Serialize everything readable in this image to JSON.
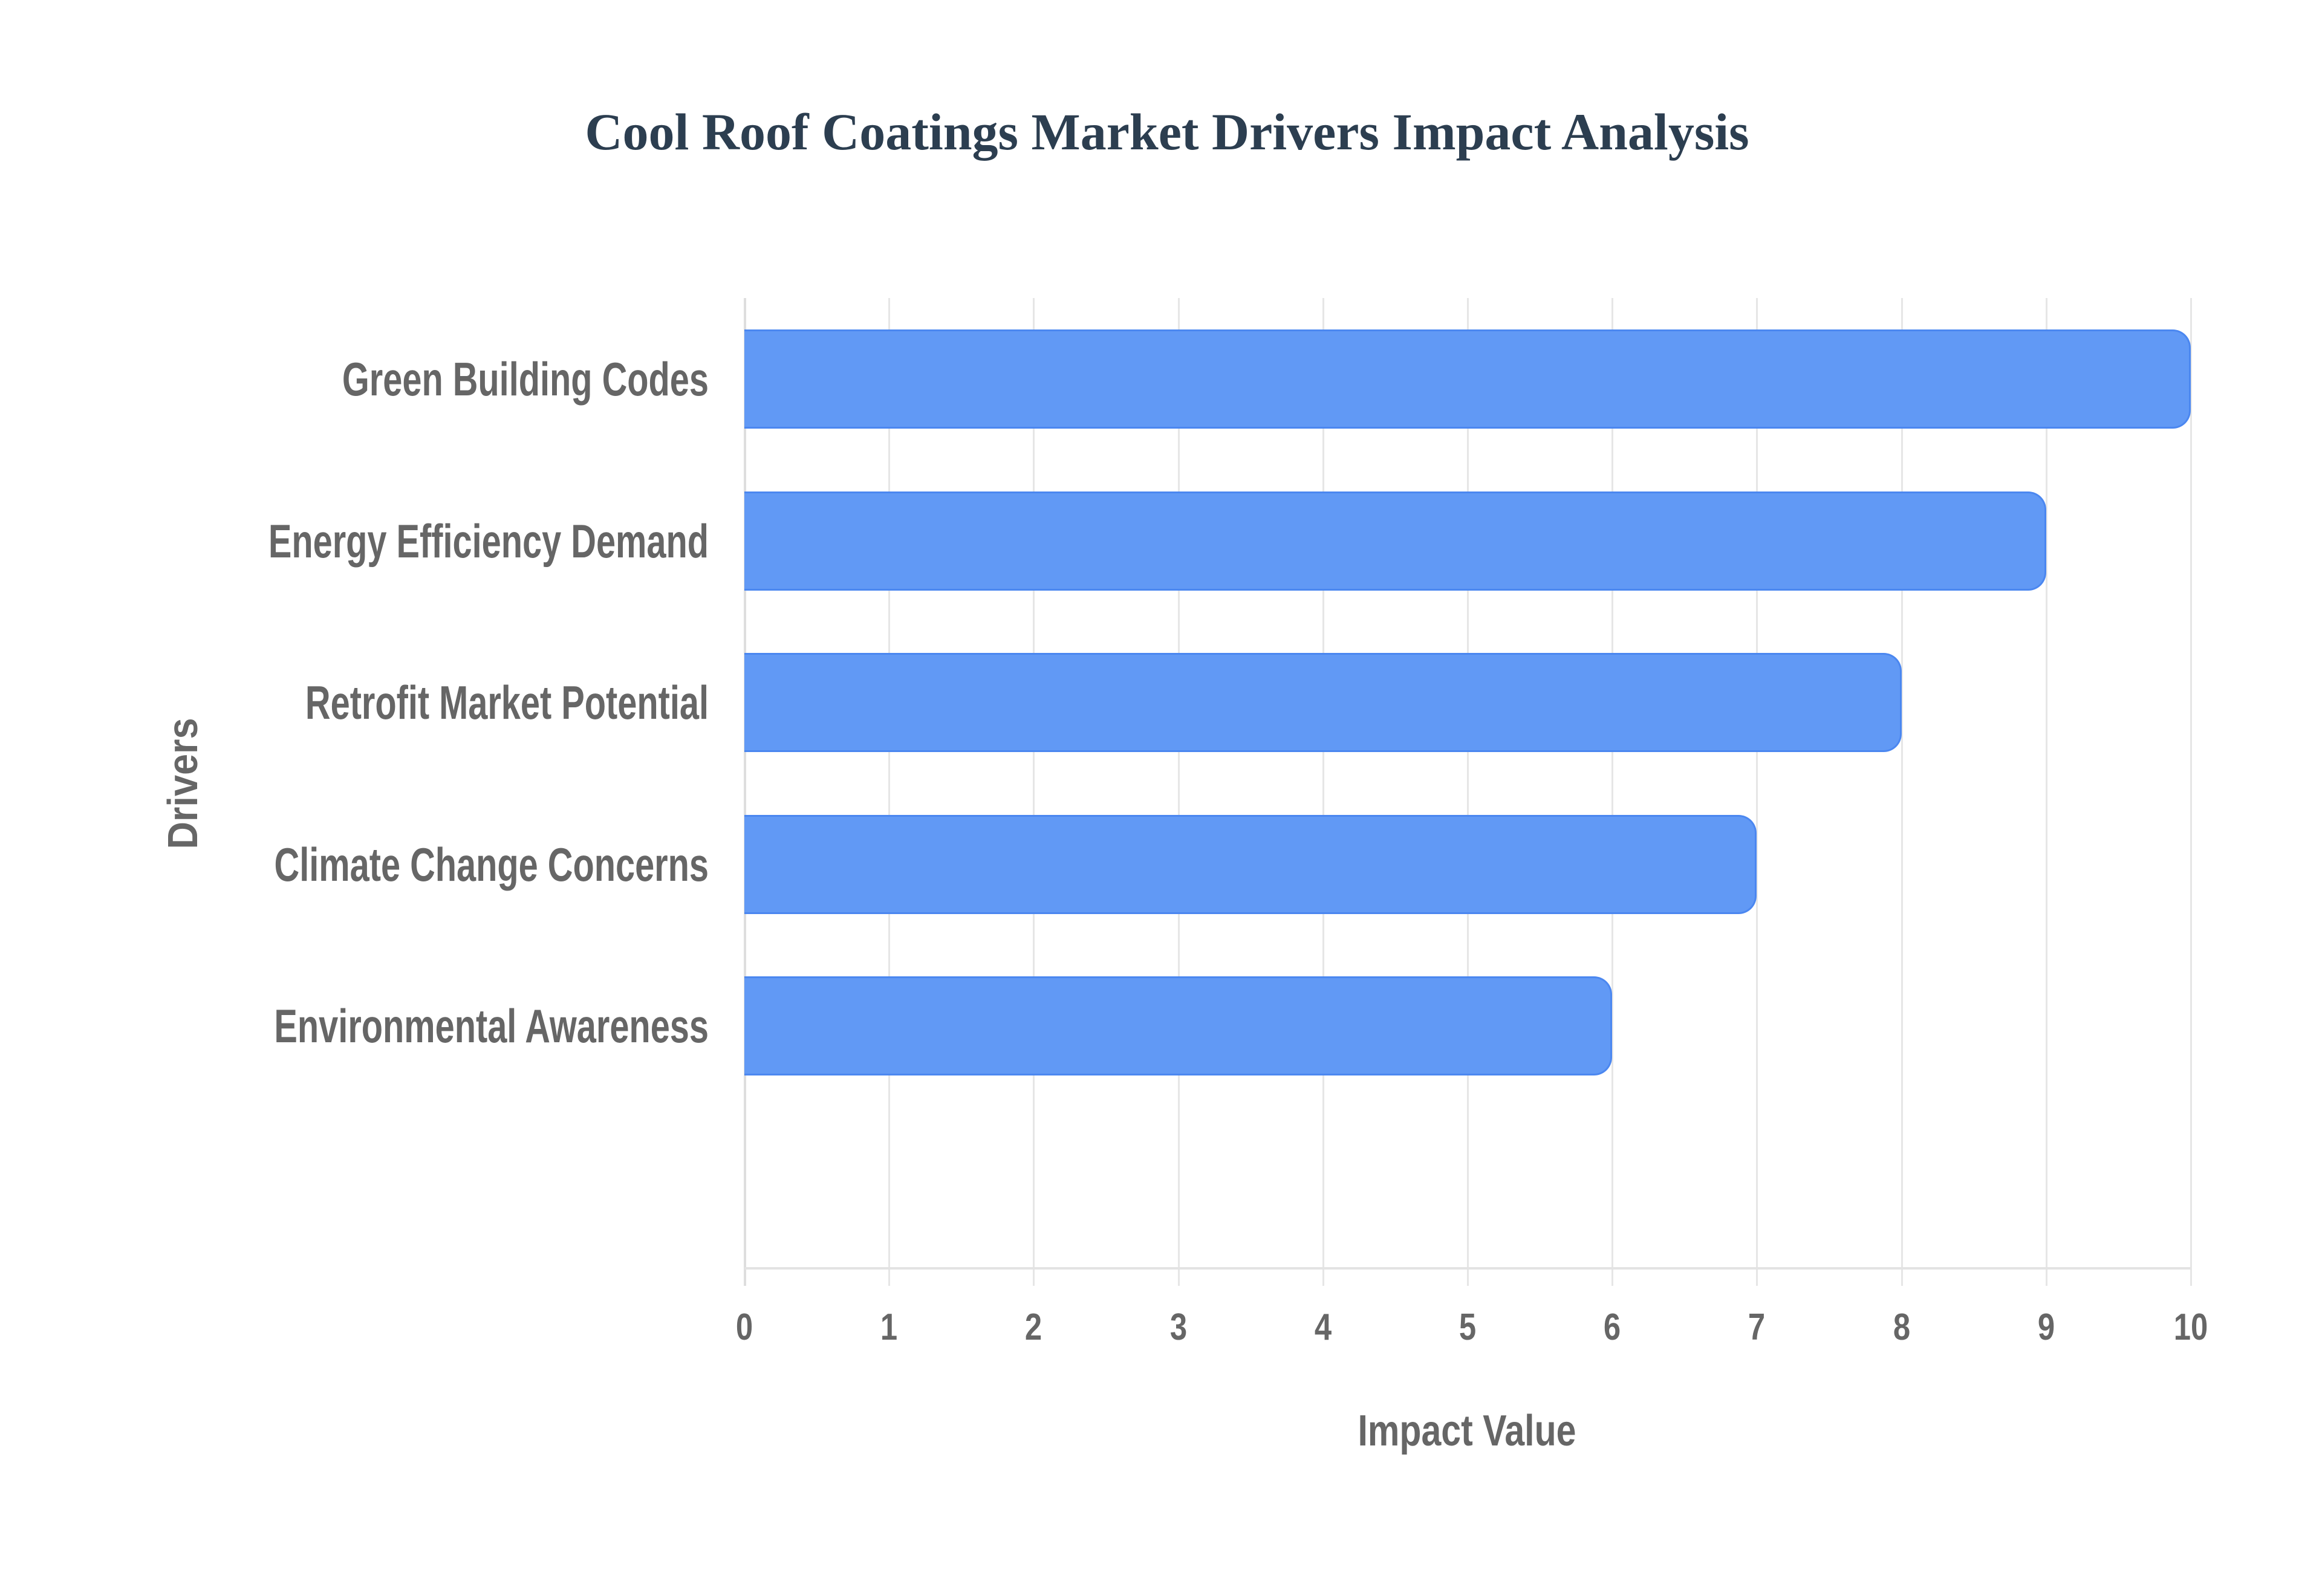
{
  "title": "Cool Roof Coatings Market Drivers Impact Analysis",
  "x_axis": {
    "title": "Impact Value",
    "ticks": [
      "0",
      "1",
      "2",
      "3",
      "4",
      "5",
      "6",
      "7",
      "8",
      "9",
      "10"
    ]
  },
  "y_axis": {
    "title": "Drivers"
  },
  "categories": [
    "Green Building Codes",
    "Energy Efficiency Demand",
    "Retrofit Market Potential",
    "Climate Change Concerns",
    "Environmental Awareness"
  ],
  "colors": {
    "bar_fill": "#6199f5",
    "bar_border": "#4b87f0",
    "title": "#2c3e50",
    "axis_text": "#666666",
    "grid": "#e6e6e6"
  },
  "chart_data": {
    "type": "bar",
    "orientation": "horizontal",
    "title": "Cool Roof Coatings Market Drivers Impact Analysis",
    "xlabel": "Impact Value",
    "ylabel": "Drivers",
    "categories": [
      "Green Building Codes",
      "Energy Efficiency Demand",
      "Retrofit Market Potential",
      "Climate Change Concerns",
      "Environmental Awareness"
    ],
    "values": [
      10,
      9,
      8,
      7,
      6
    ],
    "xlim": [
      0,
      10
    ],
    "x_ticks": [
      0,
      1,
      2,
      3,
      4,
      5,
      6,
      7,
      8,
      9,
      10
    ],
    "grid": true,
    "legend": "none"
  }
}
